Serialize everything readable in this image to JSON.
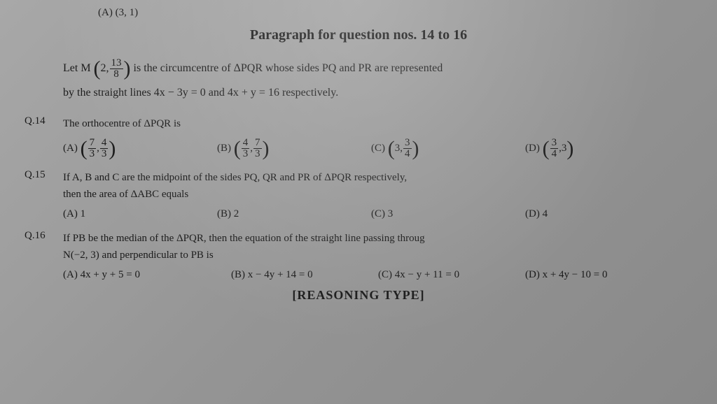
{
  "top_option": "(A) (3, 1)",
  "heading": "Paragraph for question nos. 14 to 16",
  "intro": {
    "let_text": "Let M",
    "m_coord_x": "2",
    "m_coord_y_num": "13",
    "m_coord_y_den": "8",
    "circumcentre_text": "is the circumcentre of ΔPQR whose sides PQ and PR are represented",
    "line2": "by the straight lines 4x − 3y = 0 and 4x + y = 16 respectively."
  },
  "q14": {
    "num": "Q.14",
    "text": "The orthocentre of ΔPQR is",
    "optA_label": "(A)",
    "optA_x_num": "7",
    "optA_x_den": "3",
    "optA_y_num": "4",
    "optA_y_den": "3",
    "optB_label": "(B)",
    "optB_x_num": "4",
    "optB_x_den": "3",
    "optB_y_num": "7",
    "optB_y_den": "3",
    "optC_label": "(C)",
    "optC_x": "3",
    "optC_y_num": "3",
    "optC_y_den": "4",
    "optD_label": "(D)",
    "optD_x_num": "3",
    "optD_x_den": "4",
    "optD_y": "3"
  },
  "q15": {
    "num": "Q.15",
    "text1": "If A, B and C are the midpoint of the sides PQ, QR and PR of ΔPQR respectively,",
    "text2": "then the area of ΔABC equals",
    "optA": "(A) 1",
    "optB": "(B) 2",
    "optC": "(C) 3",
    "optD": "(D) 4"
  },
  "q16": {
    "num": "Q.16",
    "text1": "If PB be the median of the ΔPQR, then the equation of the straight line passing throug",
    "text2": "N(−2, 3) and perpendicular to PB is",
    "optA": "(A) 4x + y + 5 = 0",
    "optB": "(B) x − 4y + 14 = 0",
    "optC": "(C) 4x − y + 11 = 0",
    "optD": "(D) x + 4y − 10 = 0"
  },
  "reasoning": "[REASONING TYPE]"
}
